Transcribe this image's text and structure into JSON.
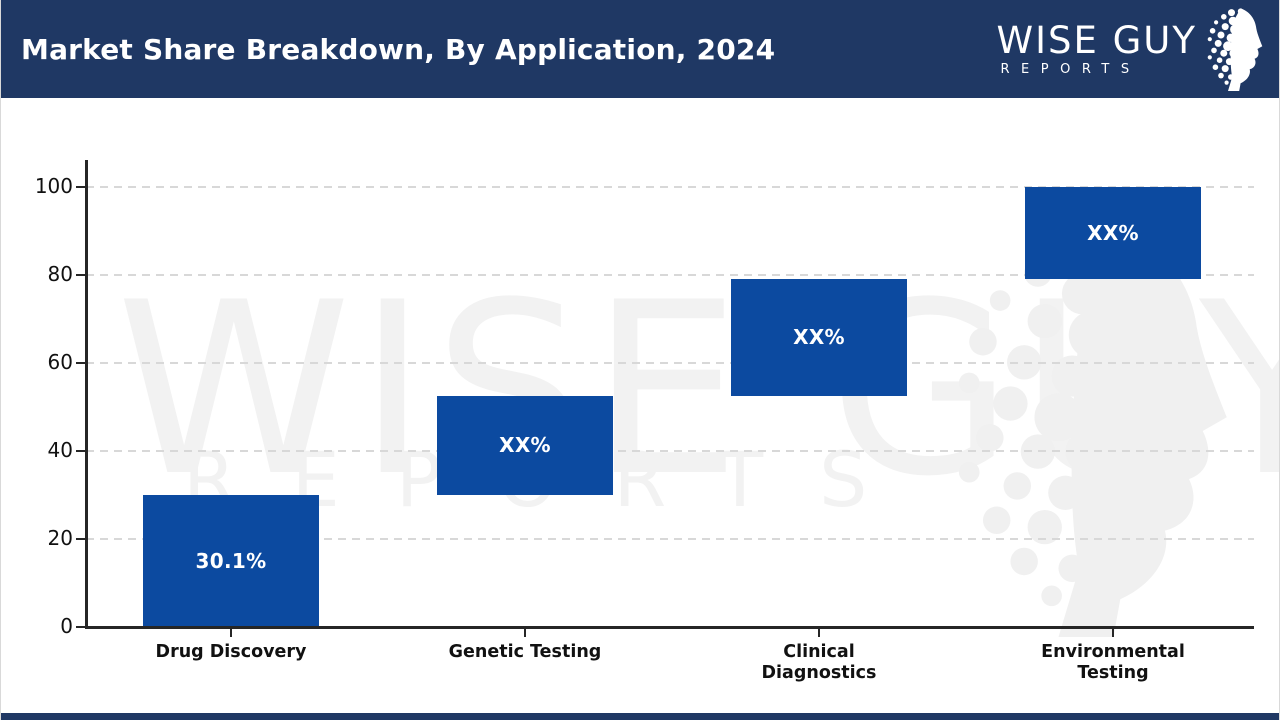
{
  "header": {
    "title": "Market Share Breakdown, By Application, 2024",
    "bg_color": "#1f3864",
    "logo_main": "WISE GUY",
    "logo_sub": "REPORTS"
  },
  "watermark": {
    "big_text": "WISE GUY",
    "sub_text": "REPORTS"
  },
  "colors": {
    "header_navy": "#1f3864",
    "bar_blue": "#0c4aa0",
    "axis": "#262626",
    "gridline": "#d8d8d8",
    "watermark": "#f2f2f2"
  },
  "chart_data": {
    "type": "bar",
    "subtype": "waterfall",
    "title": "Market Share Breakdown, By Application, 2024",
    "categories": [
      "Drug Discovery",
      "Genetic Testing",
      "Clinical\nDiagnostics",
      "Environmental\nTesting"
    ],
    "segments": [
      {
        "category": "Drug Discovery",
        "start": 0,
        "end": 30.1,
        "label": "30.1%"
      },
      {
        "category": "Genetic Testing",
        "start": 30.1,
        "end": 52.6,
        "label": "XX%"
      },
      {
        "category": "Clinical Diagnostics",
        "start": 52.6,
        "end": 79.2,
        "label": "XX%"
      },
      {
        "category": "Environmental Testing",
        "start": 79.2,
        "end": 100,
        "label": "XX%"
      }
    ],
    "segment_sizes": [
      30.1,
      22.5,
      26.6,
      20.8
    ],
    "xlabel": "",
    "ylabel": "",
    "ylim": [
      0,
      100
    ],
    "yticks": [
      0,
      20,
      40,
      60,
      80,
      100
    ],
    "grid": "horizontal dashed",
    "legend": "none",
    "bar_color": "#0c4aa0",
    "label_color": "#ffffff"
  }
}
